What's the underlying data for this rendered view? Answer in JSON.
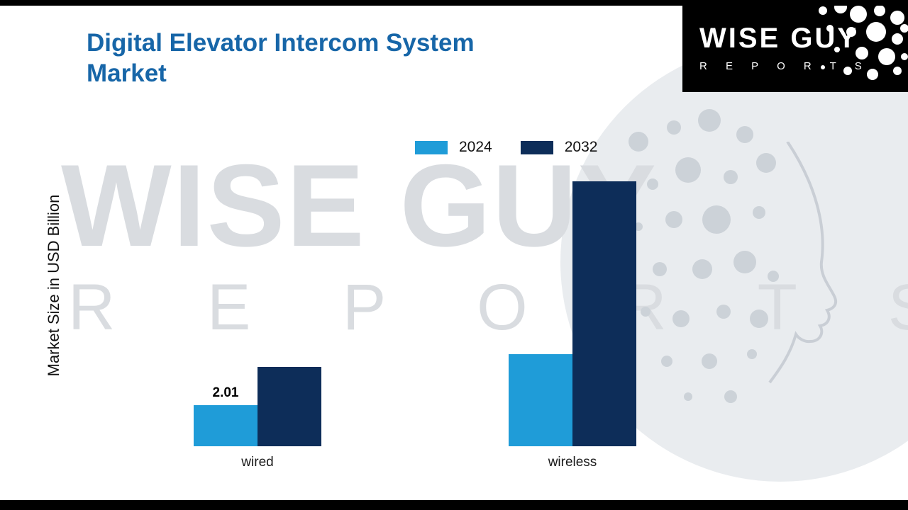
{
  "header": {
    "title_line1": "Digital Elevator Intercom System",
    "title_line2": "Market"
  },
  "logo": {
    "name_line": "WISE GUY",
    "reports_line": "R E P O R T S"
  },
  "watermark": {
    "line1": "WISE GUY",
    "line2": "R E P O R T S"
  },
  "axis": {
    "y_label": "Market Size in USD Billion"
  },
  "colors": {
    "title_blue": "#1766a8",
    "bar_2024": "#1f9cd8",
    "bar_2032": "#0d2d59",
    "watermark_gray": "#d9dce0"
  },
  "chart_data": {
    "type": "bar",
    "title": "Digital Elevator Intercom System Market",
    "xlabel": "",
    "ylabel": "Market Size in USD Billion",
    "categories": [
      "wired",
      "wireless"
    ],
    "series": [
      {
        "name": "2024",
        "color": "#1f9cd8",
        "values": [
          2.01,
          4.5
        ],
        "labels": [
          "2.01",
          ""
        ]
      },
      {
        "name": "2032",
        "color": "#0d2d59",
        "values": [
          3.9,
          13.0
        ],
        "labels": [
          "",
          ""
        ]
      }
    ],
    "ylim": [
      0,
      14
    ],
    "grid": false,
    "legend_position": "top"
  }
}
